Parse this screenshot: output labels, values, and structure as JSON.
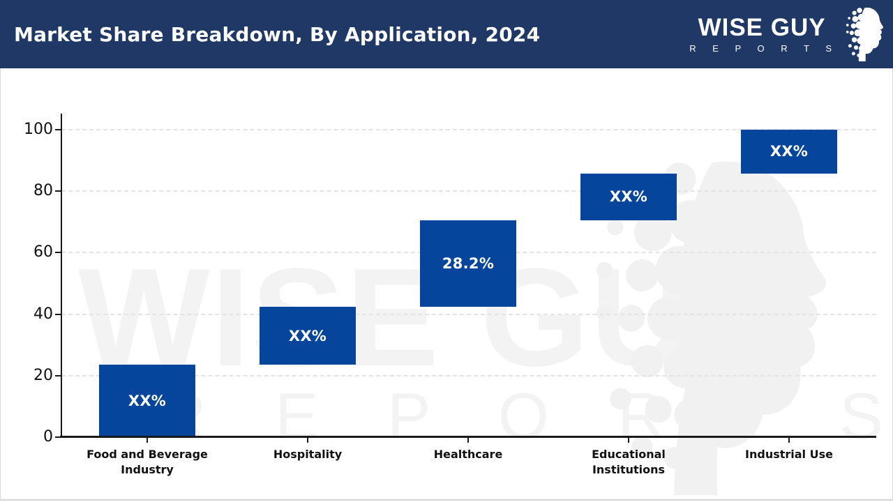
{
  "header": {
    "title": "Market Share Breakdown, By Application, 2024",
    "background_color": "#1F3866",
    "logo": {
      "name": "WISE GUY",
      "subtitle": "R E P O R T S"
    }
  },
  "watermark": {
    "line1": "WISE GUY",
    "line2": "R E P O R T S"
  },
  "chart_data": {
    "type": "bar",
    "subtype": "waterfall",
    "title": "Market Share Breakdown, By Application, 2024",
    "categories": [
      "Food and Beverage\nIndustry",
      "Hospitality",
      "Healthcare",
      "Educational\nInstitutions",
      "Industrial Use"
    ],
    "series": [
      {
        "category": "Food and Beverage Industry",
        "start": 0,
        "end": 23.5,
        "value": 23.5,
        "label": "XX%"
      },
      {
        "category": "Hospitality",
        "start": 23.5,
        "end": 42.3,
        "value": 18.8,
        "label": "XX%"
      },
      {
        "category": "Healthcare",
        "start": 42.3,
        "end": 70.5,
        "value": 28.2,
        "label": "28.2%"
      },
      {
        "category": "Educational Institutions",
        "start": 70.5,
        "end": 85.8,
        "value": 15.3,
        "label": "XX%"
      },
      {
        "category": "Industrial Use",
        "start": 85.8,
        "end": 100,
        "value": 14.2,
        "label": "XX%"
      }
    ],
    "yticks": [
      0,
      20,
      40,
      60,
      80,
      100
    ],
    "ylim": [
      0,
      105
    ],
    "xlabel": "",
    "ylabel": "",
    "legend": "none",
    "grid": {
      "axis": "y",
      "style": "dashed",
      "color": "#E4E4E4"
    },
    "bar_color": "#05459B",
    "bar_label_color": "#FFFFFF"
  }
}
